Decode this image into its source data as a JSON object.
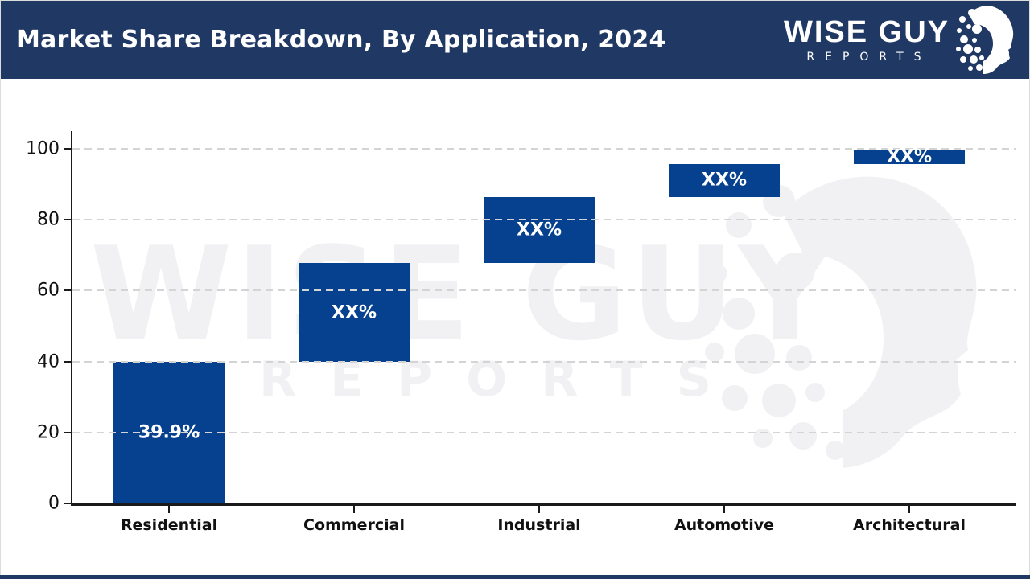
{
  "header": {
    "title": "Market Share Breakdown, By Application, 2024",
    "logo": {
      "line1": "WISE GUY",
      "line2": "REPORTS"
    }
  },
  "watermark": {
    "line1": "WISE GUY",
    "line2": "REPORTS"
  },
  "colors": {
    "header_bg": "#1f3864",
    "footer_bg": "#1f3864",
    "bar": "#05418f",
    "bar_label": "#ffffff",
    "grid": "#d4d4d4",
    "axis": "#1a1a1a",
    "watermark": "#f1f1f4"
  },
  "chart_data": {
    "type": "bar",
    "subtype": "waterfall",
    "title": "Market Share Breakdown, By Application, 2024",
    "xlabel": "",
    "ylabel": "",
    "categories": [
      "Residential",
      "Commercial",
      "Industrial",
      "Automotive",
      "Architectural"
    ],
    "segments": [
      {
        "category": "Residential",
        "start": 0,
        "end": 39.9,
        "label": "39.9%"
      },
      {
        "category": "Commercial",
        "start": 39.9,
        "end": 67.7,
        "label": "XX%"
      },
      {
        "category": "Industrial",
        "start": 67.7,
        "end": 86.5,
        "label": "XX%"
      },
      {
        "category": "Automotive",
        "start": 86.5,
        "end": 95.8,
        "label": "XX%"
      },
      {
        "category": "Architectural",
        "start": 95.8,
        "end": 99.8,
        "label": "XX%"
      }
    ],
    "yticks": [
      0,
      20,
      40,
      60,
      80,
      100
    ],
    "ylim": [
      0,
      105
    ],
    "grid": "horizontal-dashed",
    "grid_over_bars": true,
    "legend": "none",
    "bar_value_label_style": "centered-white-bold"
  }
}
